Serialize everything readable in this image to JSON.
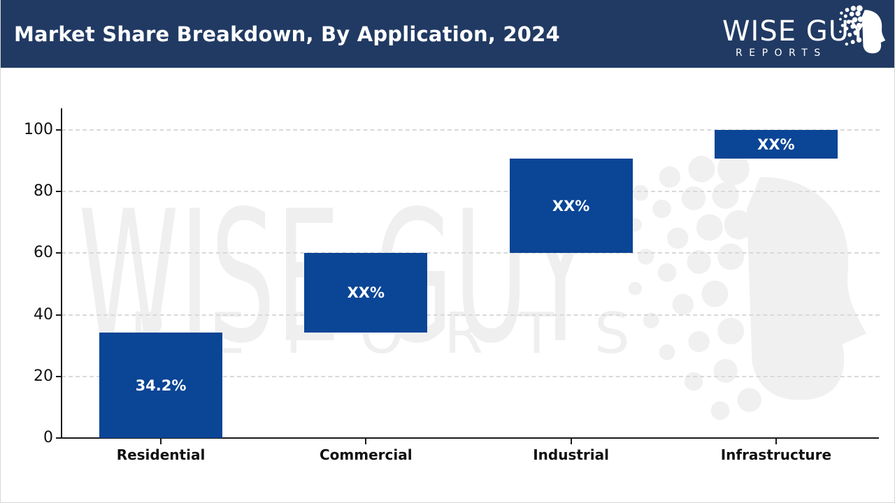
{
  "header": {
    "title": "Market Share Breakdown, By Application, 2024",
    "logo": {
      "brand": "WISE GUY",
      "sub": "REPORTS"
    }
  },
  "watermark": {
    "brand": "WISE GUY",
    "sub": "REPORTS"
  },
  "chart_data": {
    "type": "bar",
    "variant": "waterfall",
    "title": "Market Share Breakdown, By Application, 2024",
    "categories": [
      "Residential",
      "Commercial",
      "Industrial",
      "Infrastructure"
    ],
    "segments": [
      {
        "category": "Residential",
        "start": 0,
        "end": 34.2,
        "label": "34.2%"
      },
      {
        "category": "Commercial",
        "start": 34.2,
        "end": 60.0,
        "label": "XX%"
      },
      {
        "category": "Industrial",
        "start": 60.0,
        "end": 90.6,
        "label": "XX%"
      },
      {
        "category": "Infrastructure",
        "start": 90.6,
        "end": 100.0,
        "label": "XX%"
      }
    ],
    "y_ticks": [
      0,
      20,
      40,
      60,
      80,
      100
    ],
    "ylim": [
      0,
      107
    ],
    "xlabel": "",
    "ylabel": "",
    "grid": "horizontal-dashed",
    "legend": "none",
    "bar_color": "#0a4596",
    "bar_label_color": "#ffffff"
  },
  "colors": {
    "header_bg": "#213a63",
    "axis": "#1a1a1a",
    "grid": "#d9d9d9",
    "watermark": "#efefef",
    "border": "#d7d7d7"
  }
}
